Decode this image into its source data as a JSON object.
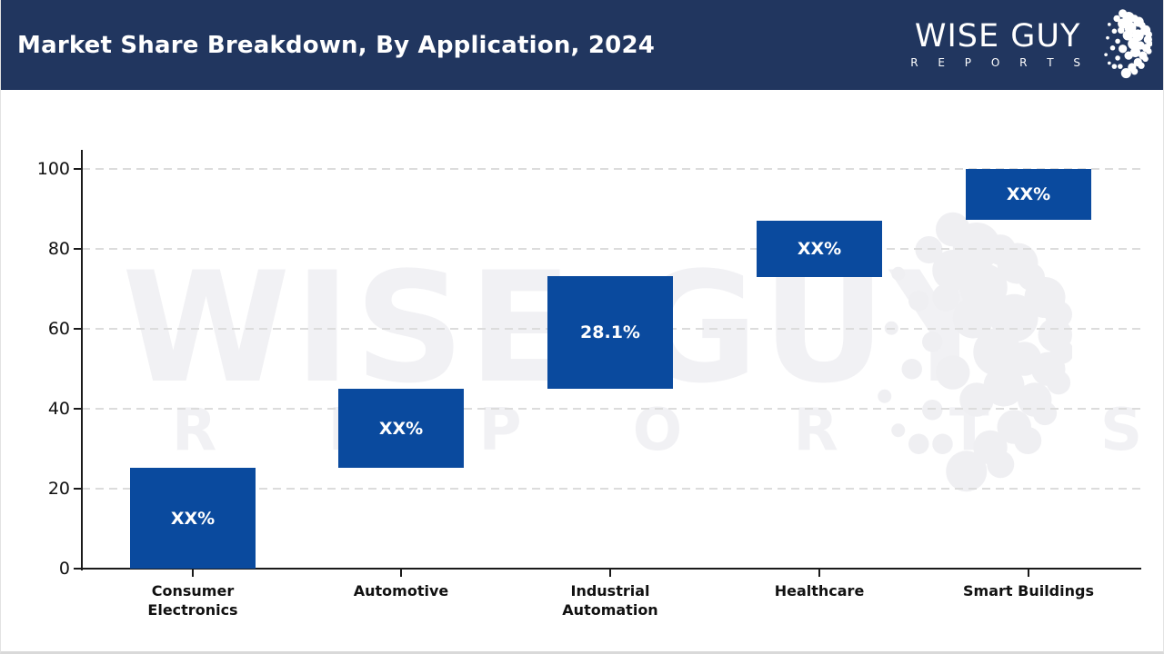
{
  "header": {
    "title": "Market Share Breakdown, By Application, 2024",
    "logo": {
      "line1": "WISE GUY",
      "line2": "R E P O R T S"
    }
  },
  "watermark": {
    "line1": "WISE GUY",
    "line2": "R E P O R T S"
  },
  "chart_data": {
    "type": "bar",
    "subtype": "floating-waterfall",
    "title": "Market Share Breakdown, By Application, 2024",
    "categories": [
      "Consumer\nElectronics",
      "Automotive",
      "Industrial\nAutomation",
      "Healthcare",
      "Smart Buildings"
    ],
    "segments": [
      {
        "category": "Consumer Electronics",
        "start": 0,
        "end": 25.2,
        "label": "XX%"
      },
      {
        "category": "Automotive",
        "start": 25.2,
        "end": 44.9,
        "label": "XX%"
      },
      {
        "category": "Industrial Automation",
        "start": 45.0,
        "end": 73.1,
        "label": "28.1%"
      },
      {
        "category": "Healthcare",
        "start": 73.0,
        "end": 87.0,
        "label": "XX%"
      },
      {
        "category": "Smart Buildings",
        "start": 87.3,
        "end": 100.0,
        "label": "XX%"
      }
    ],
    "yticks": [
      0,
      20,
      40,
      60,
      80,
      100
    ],
    "ylim": [
      0,
      105
    ],
    "grid": "horizontal-dashed",
    "legend": "none",
    "xlabel": "",
    "ylabel": ""
  },
  "colors": {
    "header_bg": "#21365f",
    "bar": "#0a4a9e",
    "bar_label": "#ffffff",
    "grid": "#dcdcdc",
    "axis": "#1a1a1a",
    "watermark": "#f1f1f4"
  }
}
